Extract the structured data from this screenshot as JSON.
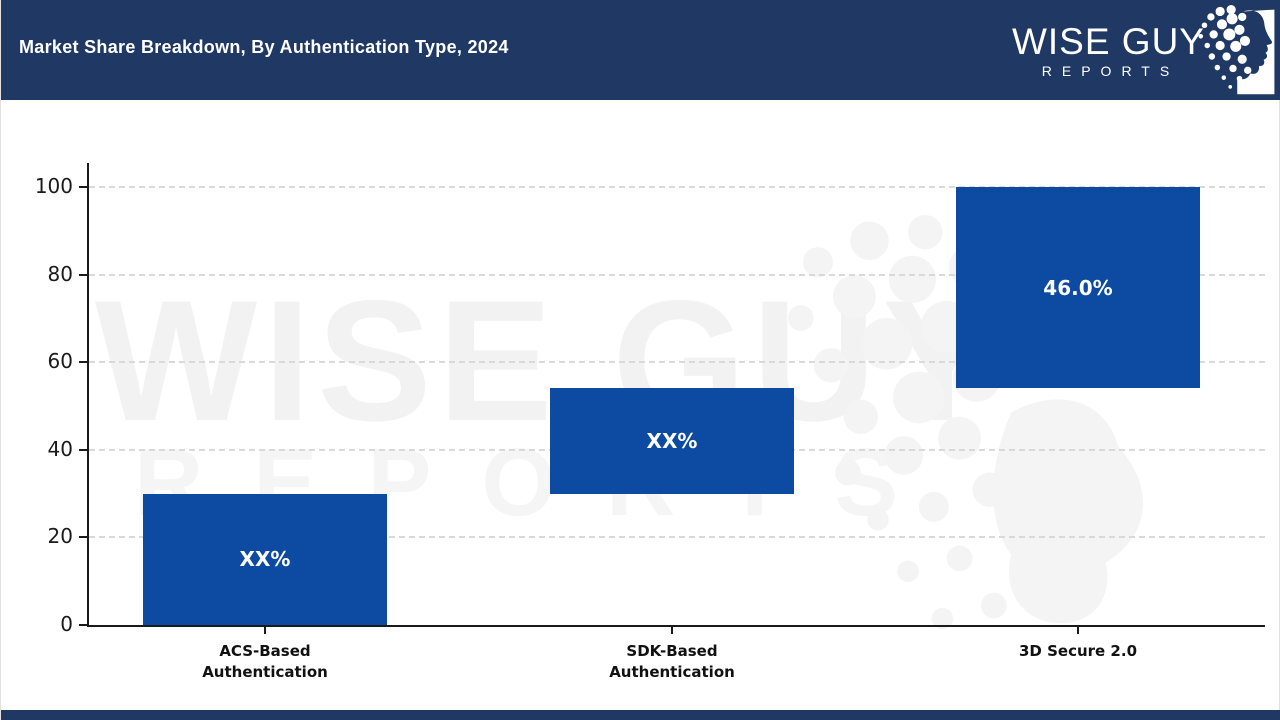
{
  "header": {
    "title": "Market Share Breakdown, By Authentication Type, 2024",
    "logo": {
      "name": "WISE GUY",
      "sub": "REPORTS"
    }
  },
  "watermark": {
    "name": "WISE GUY",
    "sub": "REPORTS"
  },
  "chart_data": {
    "type": "bar",
    "subtype": "waterfall",
    "title": "Market Share Breakdown, By Authentication Type, 2024",
    "categories": [
      {
        "lines": [
          "ACS-Based",
          "Authentication"
        ]
      },
      {
        "lines": [
          "SDK-Based",
          "Authentication"
        ]
      },
      {
        "lines": [
          "3D Secure 2.0"
        ]
      }
    ],
    "segments": [
      {
        "category": "ACS-Based Authentication",
        "start": 0,
        "end": 30,
        "value": 30,
        "label": "XX%"
      },
      {
        "category": "SDK-Based Authentication",
        "start": 30,
        "end": 54,
        "value": 24,
        "label": "XX%"
      },
      {
        "category": "3D Secure 2.0",
        "start": 54,
        "end": 100,
        "value": 46,
        "label": "46.0%"
      }
    ],
    "ylim": [
      0,
      105
    ],
    "yticks": [
      0,
      20,
      40,
      60,
      80,
      100
    ],
    "xlabel": "",
    "ylabel": "",
    "grid": "horizontal-dashed",
    "legend": "none"
  },
  "theme": {
    "header_bg": "#1f3864",
    "footer_bg": "#1f3864",
    "bar_color": "#0d4aa1",
    "bar_label_color": "#ffffff",
    "grid_color": "#d9d9d9",
    "axis_color": "#1a1a1a",
    "watermark_color": "#f2f2f2"
  }
}
